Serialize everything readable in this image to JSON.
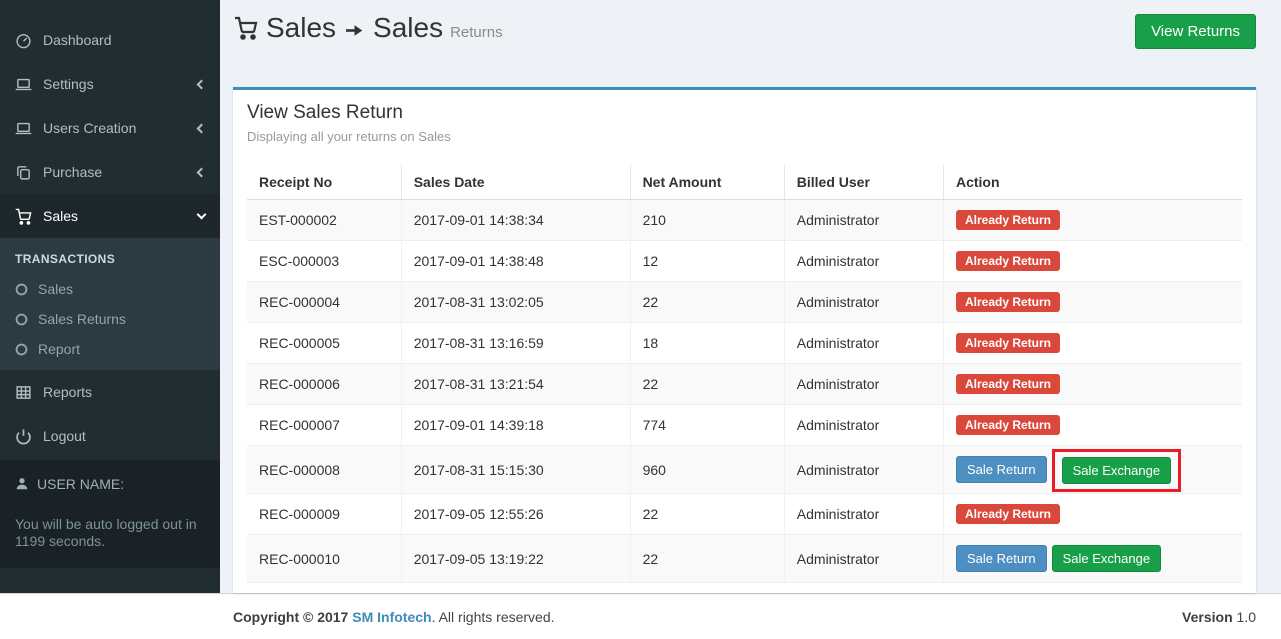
{
  "sidebar": {
    "items": [
      {
        "label": "Dashboard",
        "icon": "dashboard-icon"
      },
      {
        "label": "Settings",
        "icon": "laptop-icon",
        "chevron": "left"
      },
      {
        "label": "Users Creation",
        "icon": "laptop-icon",
        "chevron": "left"
      },
      {
        "label": "Purchase",
        "icon": "copy-icon",
        "chevron": "left"
      },
      {
        "label": "Sales",
        "icon": "cart-icon",
        "chevron": "down",
        "active": true
      }
    ],
    "submenu_header": "TRANSACTIONS",
    "submenu": [
      {
        "label": "Sales"
      },
      {
        "label": "Sales Returns"
      },
      {
        "label": "Report"
      }
    ],
    "items_bottom": [
      {
        "label": "Reports",
        "icon": "table-icon"
      },
      {
        "label": "Logout",
        "icon": "power-icon"
      }
    ],
    "user_label": "USER NAME:",
    "auto_logout_text": "You will be auto logged out in 1199 seconds."
  },
  "header": {
    "title_primary": "Sales",
    "title_secondary": "Sales",
    "subtitle": "Returns",
    "view_returns_label": "View Returns"
  },
  "panel": {
    "title": "View Sales Return",
    "subtitle": "Displaying all your returns on Sales"
  },
  "table": {
    "columns": [
      "Receipt No",
      "Sales Date",
      "Net Amount",
      "Billed User",
      "Action"
    ],
    "action_labels": {
      "already_return": "Already Return",
      "sale_return": "Sale Return",
      "sale_exchange": "Sale Exchange"
    },
    "rows": [
      {
        "receipt_no": "EST-000002",
        "sales_date": "2017-09-01 14:38:34",
        "net_amount": "210",
        "billed_user": "Administrator",
        "actions": [
          "already_return"
        ]
      },
      {
        "receipt_no": "ESC-000003",
        "sales_date": "2017-09-01 14:38:48",
        "net_amount": "12",
        "billed_user": "Administrator",
        "actions": [
          "already_return"
        ]
      },
      {
        "receipt_no": "REC-000004",
        "sales_date": "2017-08-31 13:02:05",
        "net_amount": "22",
        "billed_user": "Administrator",
        "actions": [
          "already_return"
        ]
      },
      {
        "receipt_no": "REC-000005",
        "sales_date": "2017-08-31 13:16:59",
        "net_amount": "18",
        "billed_user": "Administrator",
        "actions": [
          "already_return"
        ]
      },
      {
        "receipt_no": "REC-000006",
        "sales_date": "2017-08-31 13:21:54",
        "net_amount": "22",
        "billed_user": "Administrator",
        "actions": [
          "already_return"
        ]
      },
      {
        "receipt_no": "REC-000007",
        "sales_date": "2017-09-01 14:39:18",
        "net_amount": "774",
        "billed_user": "Administrator",
        "actions": [
          "already_return"
        ]
      },
      {
        "receipt_no": "REC-000008",
        "sales_date": "2017-08-31 15:15:30",
        "net_amount": "960",
        "billed_user": "Administrator",
        "actions": [
          "sale_return",
          "sale_exchange"
        ],
        "highlight_exchange": true
      },
      {
        "receipt_no": "REC-000009",
        "sales_date": "2017-09-05 12:55:26",
        "net_amount": "22",
        "billed_user": "Administrator",
        "actions": [
          "already_return"
        ]
      },
      {
        "receipt_no": "REC-000010",
        "sales_date": "2017-09-05 13:19:22",
        "net_amount": "22",
        "billed_user": "Administrator",
        "actions": [
          "sale_return",
          "sale_exchange"
        ]
      }
    ]
  },
  "footer": {
    "copyright_prefix": "Copyright © 2017 ",
    "brand": "SM Infotech",
    "copyright_suffix": ". All rights reserved.",
    "version_label": "Version",
    "version_value": " 1.0"
  },
  "colors": {
    "topbar": "#3f8ec6",
    "panel-border": "#3c8dbc",
    "green": "#18a049",
    "blue-btn": "#4d8fc0",
    "red-label": "#d9483a",
    "highlight-red": "#ec1c24",
    "link-blue": "#3c8dbc",
    "sidebar-bg": "#222d32",
    "sidebar-sub-bg": "#2c3b41",
    "sidebar-active-bg": "#1e282c",
    "sidebar-user-bg": "#1a2226",
    "sidebar-text": "#b0bec5",
    "content-bg": "#eef1f6"
  }
}
